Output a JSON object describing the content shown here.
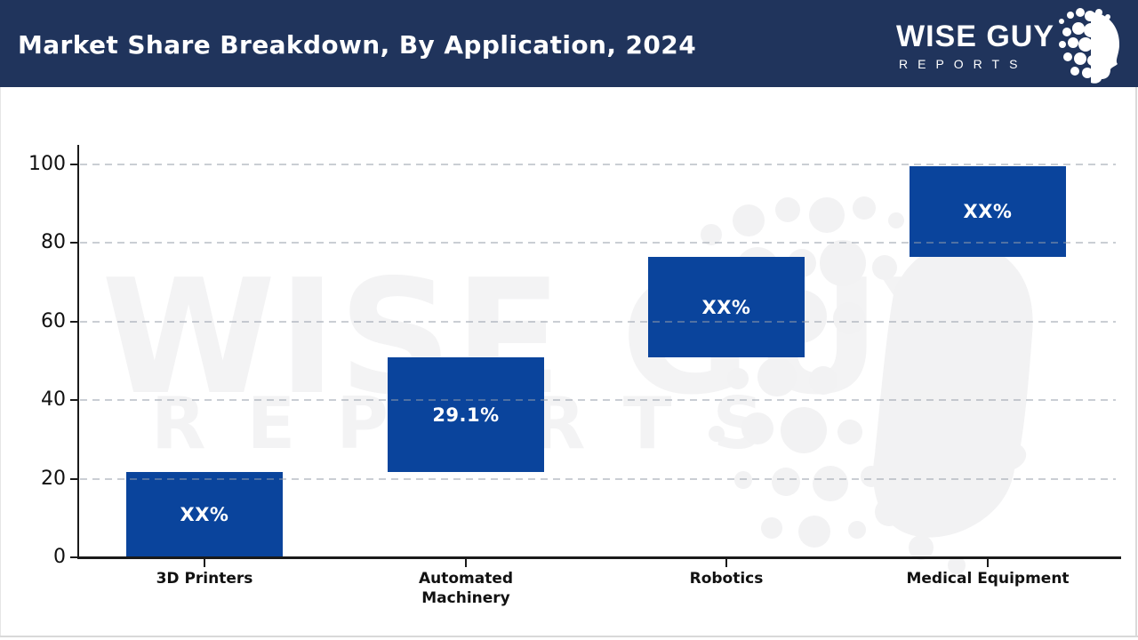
{
  "header": {
    "title": "Market Share Breakdown, By Application, 2024",
    "logo_line1": "WISE GUY",
    "logo_line2": "REPORTS"
  },
  "watermark": {
    "line1": "WISE GUY",
    "line2": "REPORTS"
  },
  "colors": {
    "header_bg": "#20345C",
    "bar": "#0A449C",
    "bar_label": "#FFFFFF",
    "axis": "#1A1A1A",
    "grid": "#C7CCD3",
    "watermark": "#F3F3F4",
    "frame": "#D9D9D9"
  },
  "chart_data": {
    "type": "bar",
    "subtype": "floating-range-waterfall",
    "title": "Market Share Breakdown, By Application, 2024",
    "categories": [
      "3D Printers",
      "Automated Machinery",
      "Robotics",
      "Medical Equipment"
    ],
    "segments": [
      {
        "category": "3D Printers",
        "start": 0,
        "end": 21.7,
        "label": "XX%"
      },
      {
        "category": "Automated Machinery",
        "start": 21.7,
        "end": 50.8,
        "label": "29.1%",
        "value": 29.1
      },
      {
        "category": "Robotics",
        "start": 50.8,
        "end": 76.4,
        "label": "XX%"
      },
      {
        "category": "Medical Equipment",
        "start": 76.4,
        "end": 99.6,
        "label": "XX%"
      }
    ],
    "xlabel": "",
    "ylabel": "",
    "ylim": [
      0,
      105
    ],
    "yticks": [
      0,
      20,
      40,
      60,
      80,
      100
    ],
    "grid": "horizontal-dashed",
    "legend": "none"
  }
}
